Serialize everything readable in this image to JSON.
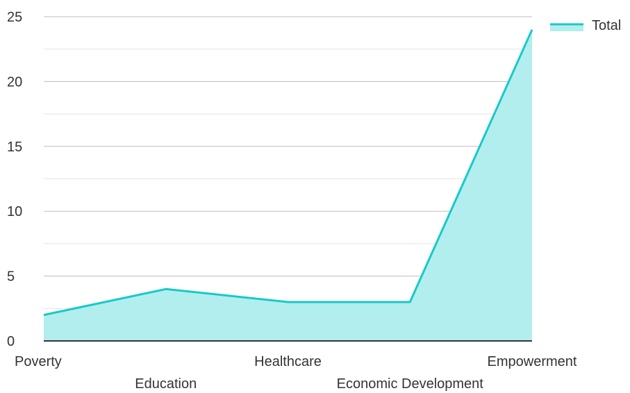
{
  "chart_data": {
    "type": "area",
    "categories": [
      "Poverty",
      "Education",
      "Healthcare",
      "Economic Development",
      "Empowerment"
    ],
    "series": [
      {
        "name": "Total",
        "values": [
          2,
          4,
          3,
          3,
          24
        ]
      }
    ],
    "ylim": [
      0,
      25
    ],
    "yticks": [
      0,
      5,
      10,
      15,
      20,
      25
    ],
    "minor_gridlines": true,
    "grid": true,
    "legend": "top-right",
    "colors": {
      "line": "#17c9c9",
      "fill": "#b2eeee",
      "grid_major": "#bdbdbd",
      "grid_minor": "#e3e3e3",
      "axis": "#333333"
    }
  }
}
